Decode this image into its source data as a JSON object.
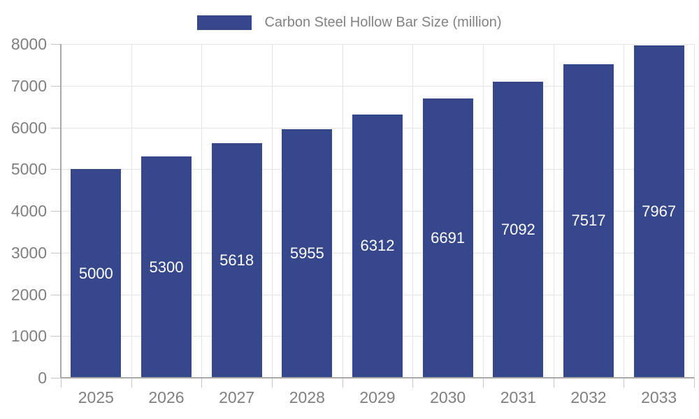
{
  "legend": {
    "label": "Carbon Steel Hollow Bar Size (million)"
  },
  "chart_data": {
    "type": "bar",
    "title": "Carbon Steel Hollow Bar Size (million)",
    "categories": [
      "2025",
      "2026",
      "2027",
      "2028",
      "2029",
      "2030",
      "2031",
      "2032",
      "2033"
    ],
    "series": [
      {
        "name": "Carbon Steel Hollow Bar Size (million)",
        "values": [
          5000,
          5300,
          5618,
          5955,
          6312,
          6691,
          7092,
          7517,
          7967
        ]
      }
    ],
    "xlabel": "",
    "ylabel": "",
    "ylim": [
      0,
      8000
    ],
    "yticks": [
      0,
      1000,
      2000,
      3000,
      4000,
      5000,
      6000,
      7000,
      8000
    ],
    "grid": true,
    "legend_position": "top",
    "value_labels_shown": true,
    "colors": {
      "bar": "#36478b",
      "bar_label": "#ffffff",
      "axis_text": "#7f7f7f",
      "grid": "#e4e4e4",
      "axis_line": "#a8a8a8",
      "tick": "#c6c6c6",
      "background": "#ffffff"
    }
  }
}
